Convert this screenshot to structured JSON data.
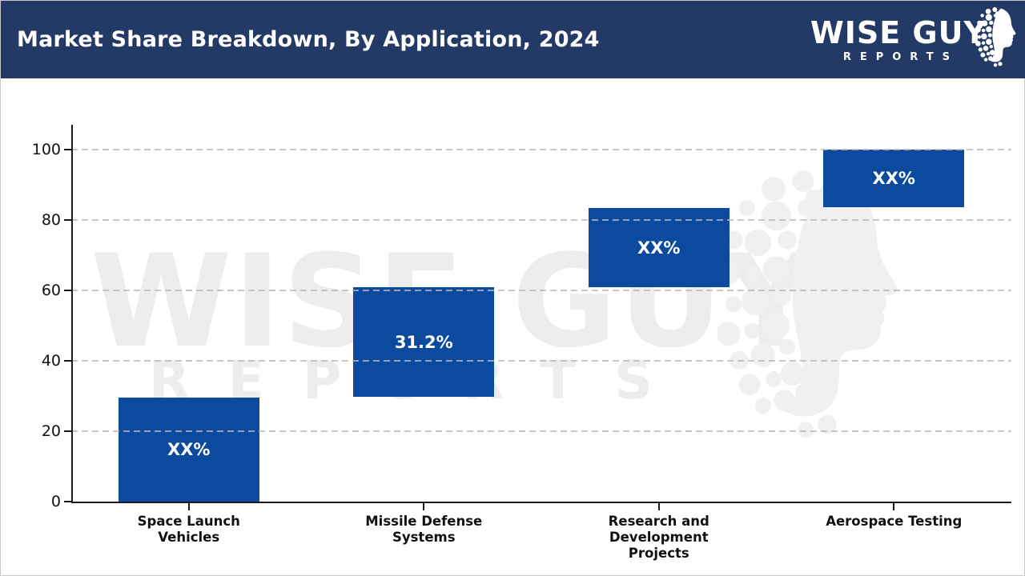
{
  "header": {
    "title": "Market Share Breakdown, By Application, 2024",
    "logo_line1": "WISE GUY",
    "logo_line2": "REPORTS"
  },
  "watermark": {
    "line1": "WISE GUY",
    "line2": "REPORTS"
  },
  "colors": {
    "header_bg": "#233a66",
    "bar_fill": "#0b4a9e",
    "axis": "#1a1a1a",
    "gridline": "#d6d6d6",
    "bar_label_text": "#ffffff",
    "watermark_text": "#ededed"
  },
  "chart_data": {
    "type": "bar",
    "subtype": "floating-waterfall",
    "title": "Market Share Breakdown, By Application, 2024",
    "categories": [
      "Space Launch Vehicles",
      "Missile Defense Systems",
      "Research and Development Projects",
      "Aerospace Testing"
    ],
    "category_tick_lines": [
      [
        "Space Launch",
        "Vehicles"
      ],
      [
        "Missile Defense",
        "Systems"
      ],
      [
        "Research and",
        "Development",
        "Projects"
      ],
      [
        "Aerospace Testing"
      ]
    ],
    "segments": [
      {
        "category": "Space Launch Vehicles",
        "start": 0,
        "end": 29.6,
        "value_label": "XX%"
      },
      {
        "category": "Missile Defense Systems",
        "start": 29.7,
        "end": 60.9,
        "value_label": "31.2%"
      },
      {
        "category": "Research and Development Projects",
        "start": 60.9,
        "end": 83.4,
        "value_label": "XX%"
      },
      {
        "category": "Aerospace Testing",
        "start": 83.7,
        "end": 100,
        "value_label": "XX%"
      }
    ],
    "xlabel": "",
    "ylabel": "",
    "yticks": [
      0,
      20,
      40,
      60,
      80,
      100
    ],
    "ylim": [
      0,
      107
    ],
    "grid": "dashed-horizontal",
    "legend": "none"
  }
}
